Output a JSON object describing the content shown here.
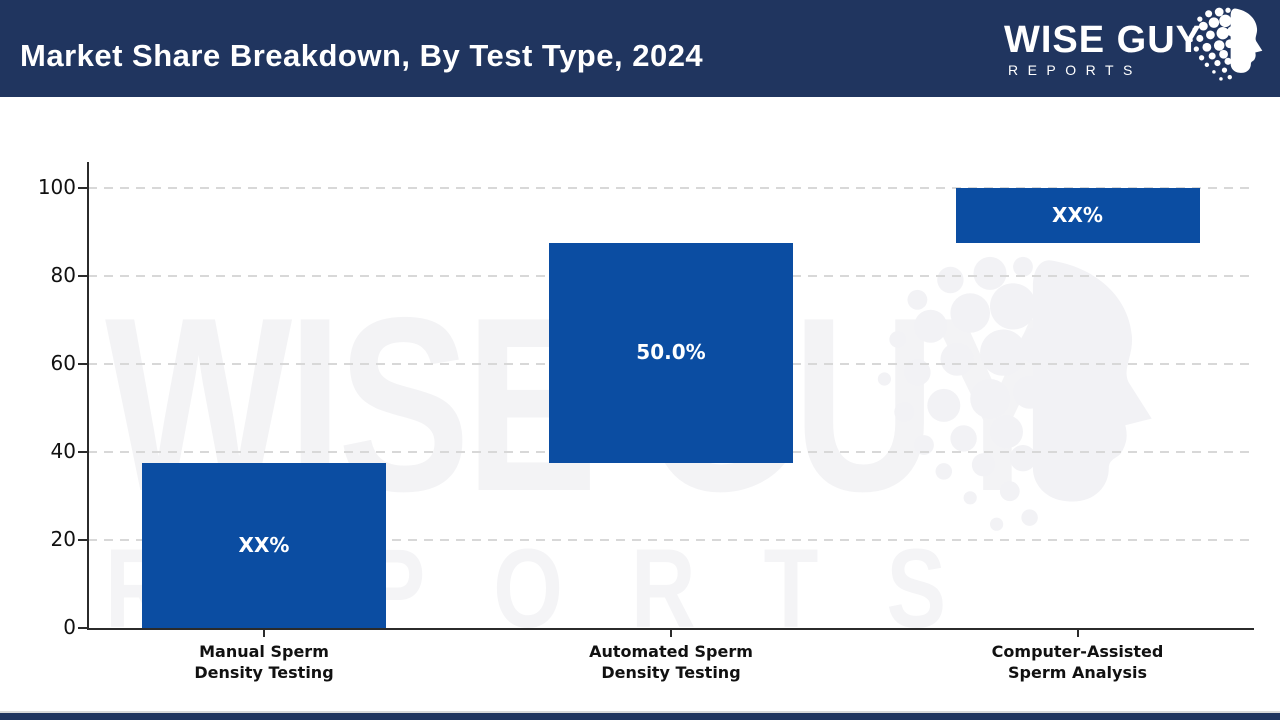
{
  "header": {
    "title": "Market Share Breakdown, By Test Type, 2024",
    "logo_line1": "WISE GUY",
    "logo_line2": "REPORTS"
  },
  "watermark": {
    "line1": "WISE GUY",
    "line2": "REPORTS"
  },
  "colors": {
    "header_bg": "#20355f",
    "bar_blue": "#0b4da2",
    "gridline": "#d8d8d8",
    "axis": "#2b2b2b",
    "watermark": "#f3f3f5"
  },
  "chart_data": {
    "type": "bar",
    "subtype": "waterfall-stacked-percentage",
    "title": "Market Share Breakdown, By Test Type, 2024",
    "xlabel": "",
    "ylabel": "",
    "ylim": [
      0,
      105
    ],
    "yticks": [
      0,
      20,
      40,
      60,
      80,
      100
    ],
    "grid": "horizontal-dashed",
    "legend": "none",
    "bar_color": "#0b4da2",
    "categories": [
      {
        "name": "Manual Sperm Density Testing",
        "lines": [
          "Manual Sperm",
          "Density Testing"
        ]
      },
      {
        "name": "Automated Sperm Density Testing",
        "lines": [
          "Automated Sperm",
          "Density Testing"
        ]
      },
      {
        "name": "Computer-Assisted Sperm Analysis",
        "lines": [
          "Computer-Assisted",
          "Sperm Analysis"
        ]
      }
    ],
    "bars": [
      {
        "category": "Manual Sperm Density Testing",
        "start": 0,
        "end": 37.5,
        "label": "XX%"
      },
      {
        "category": "Automated Sperm Density Testing",
        "start": 37.5,
        "end": 87.5,
        "label": "50.0%"
      },
      {
        "category": "Computer-Assisted Sperm Analysis",
        "start": 87.5,
        "end": 100,
        "label": "XX%"
      }
    ]
  }
}
